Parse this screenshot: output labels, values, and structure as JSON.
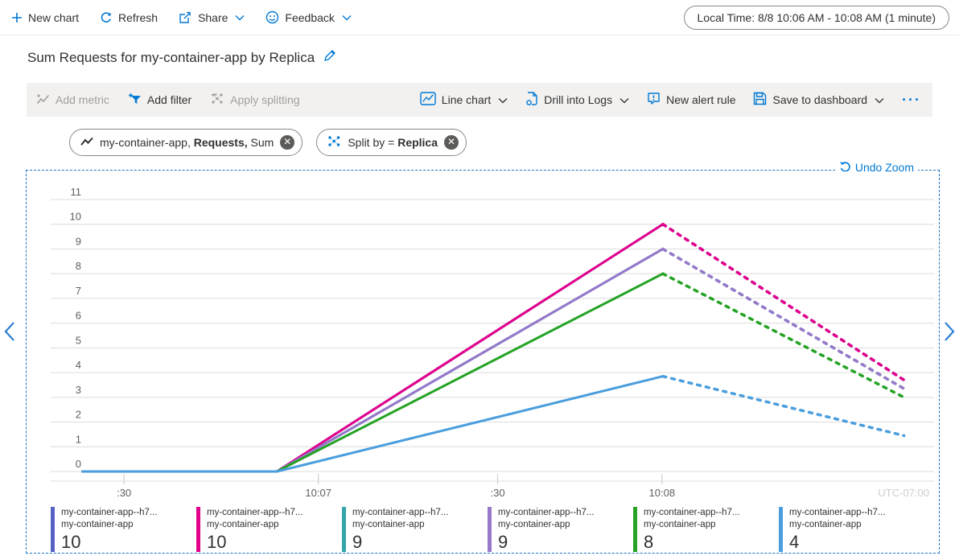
{
  "toolbar": {
    "new_chart": "New chart",
    "refresh": "Refresh",
    "share": "Share",
    "feedback": "Feedback",
    "local_time": "Local Time: 8/8 10:06 AM - 10:08 AM (1 minute)"
  },
  "title": "Sum Requests for my-container-app by Replica",
  "chart_toolbar": {
    "add_metric": "Add metric",
    "add_filter": "Add filter",
    "apply_splitting": "Apply splitting",
    "chart_type": "Line chart",
    "drill_into_logs": "Drill into Logs",
    "new_alert_rule": "New alert rule",
    "save_to_dashboard": "Save to dashboard",
    "more": "···"
  },
  "pills": {
    "metric": {
      "prefix": "my-container-app, ",
      "bold": "Requests,",
      "suffix": " Sum"
    },
    "split": {
      "prefix": "Split by = ",
      "bold": "Replica"
    }
  },
  "chart": {
    "undo_zoom": "Undo Zoom"
  },
  "colors": {
    "accent": "#0078d4",
    "dashed_border": "#1b73c6",
    "gridline": "#dcdcdc",
    "axis_label": "#605e5c",
    "utc_label": "#d0cecc"
  },
  "chart_data": {
    "type": "line",
    "title": "Sum Requests for my-container-app by Replica",
    "ylim": [
      0,
      11
    ],
    "y_tick_step": 1,
    "grid": true,
    "timezone": "UTC-07:00",
    "x_ticks": [
      {
        "label": ":30",
        "pos": 0.083
      },
      {
        "label": "10:07",
        "pos": 0.303
      },
      {
        "label": ":30",
        "pos": 0.506
      },
      {
        "label": "10:08",
        "pos": 0.692
      }
    ],
    "x_keypoints": {
      "start": 0.035,
      "rise_start": 0.256,
      "peak": 0.693,
      "end": 0.966
    },
    "draw_order": [
      0,
      2,
      1,
      3,
      4,
      5
    ],
    "series": [
      {
        "name": "my-container-app--h7...",
        "sublabel": "my-container-app",
        "legend_value": 10,
        "color": "#5661c4",
        "values_solid": [
          0,
          0,
          10
        ],
        "value_end_dotted": 3.7
      },
      {
        "name": "my-container-app--h7...",
        "sublabel": "my-container-app",
        "legend_value": 10,
        "color": "#e3008c",
        "values_solid": [
          0,
          0,
          10
        ],
        "value_end_dotted": 3.7
      },
      {
        "name": "my-container-app--h7...",
        "sublabel": "my-container-app",
        "legend_value": 9,
        "color": "#32a5a8",
        "values_solid": [
          0,
          0,
          9
        ],
        "value_end_dotted": 3.35
      },
      {
        "name": "my-container-app--h7...",
        "sublabel": "my-container-app",
        "legend_value": 9,
        "color": "#9778cb",
        "values_solid": [
          0,
          0,
          9
        ],
        "value_end_dotted": 3.35
      },
      {
        "name": "my-container-app--h7...",
        "sublabel": "my-container-app",
        "legend_value": 8,
        "color": "#24a324",
        "values_solid": [
          0,
          0,
          8
        ],
        "value_end_dotted": 3.0
      },
      {
        "name": "my-container-app--h7...",
        "sublabel": "my-container-app",
        "legend_value": 4,
        "color": "#4a9ede",
        "values_solid": [
          0,
          0,
          3.85
        ],
        "value_end_dotted": 1.45
      }
    ],
    "legend_position": "bottom"
  }
}
